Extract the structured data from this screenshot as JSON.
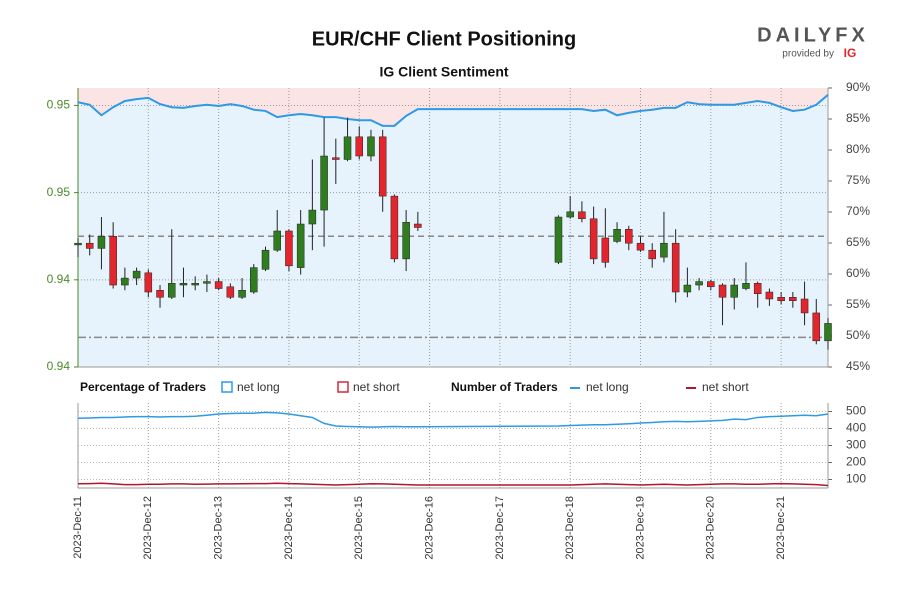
{
  "logo": {
    "name": "DAILYFX",
    "provided_by": "provided by",
    "brand": "IG"
  },
  "chart_data": [
    {
      "type": "candlestick",
      "title": "EUR/CHF Client Positioning",
      "subtitle": "IG Client Sentiment",
      "legend_title": "Percentage of Traders",
      "x": [
        0,
        1,
        2,
        3,
        4,
        5,
        6,
        7,
        8,
        9,
        10,
        11,
        12,
        13,
        14,
        15,
        16,
        17,
        18,
        19,
        20,
        21,
        22,
        23,
        24,
        25,
        26,
        27,
        28,
        29,
        41,
        42,
        43,
        44,
        45,
        46,
        47,
        48,
        49,
        50,
        51,
        52,
        53,
        54,
        55,
        56,
        57,
        58,
        59,
        60,
        61,
        62,
        63,
        64
      ],
      "xlim": [
        0,
        64
      ],
      "xticks": [
        {
          "value": 0,
          "label": "2023-Dec-11"
        },
        {
          "value": 6,
          "label": "2023-Dec-12"
        },
        {
          "value": 12,
          "label": "2023-Dec-13"
        },
        {
          "value": 18,
          "label": "2023-Dec-14"
        },
        {
          "value": 24,
          "label": "2023-Dec-15"
        },
        {
          "value": 30,
          "label": "2023-Dec-16"
        },
        {
          "value": 36,
          "label": "2023-Dec-17"
        },
        {
          "value": 42,
          "label": "2023-Dec-18"
        },
        {
          "value": 48,
          "label": "2023-Dec-19"
        },
        {
          "value": 54,
          "label": "2023-Dec-20"
        },
        {
          "value": 60,
          "label": "2023-Dec-21"
        }
      ],
      "open": [
        0.947,
        0.9471,
        0.9468,
        0.9475,
        0.9447,
        0.9451,
        0.9454,
        0.9444,
        0.944,
        0.9447,
        0.9447,
        0.9448,
        0.9449,
        0.9446,
        0.944,
        0.9443,
        0.9456,
        0.9467,
        0.9478,
        0.9457,
        0.9482,
        0.949,
        0.952,
        0.9519,
        0.9532,
        0.9521,
        0.9532,
        0.9498,
        0.9462,
        0.9482,
        0.946,
        0.9486,
        0.9489,
        0.9485,
        0.9474,
        0.9472,
        0.9479,
        0.9471,
        0.9467,
        0.9463,
        0.9471,
        0.9443,
        0.9447,
        0.9449,
        0.9447,
        0.944,
        0.9445,
        0.9448,
        0.9443,
        0.944,
        0.944,
        0.9439,
        0.9431,
        0.9415
      ],
      "high": [
        0.9474,
        0.9476,
        0.9486,
        0.9483,
        0.9457,
        0.9457,
        0.9456,
        0.9447,
        0.9479,
        0.9457,
        0.9452,
        0.9453,
        0.9451,
        0.9448,
        0.9451,
        0.9459,
        0.9469,
        0.949,
        0.9479,
        0.949,
        0.9519,
        0.9543,
        0.9531,
        0.9543,
        0.9538,
        0.9536,
        0.9536,
        0.9499,
        0.949,
        0.9489,
        0.9487,
        0.9498,
        0.9495,
        0.9492,
        0.9491,
        0.9483,
        0.9481,
        0.9475,
        0.9471,
        0.9489,
        0.9479,
        0.9457,
        0.9451,
        0.945,
        0.9448,
        0.9451,
        0.946,
        0.9449,
        0.9445,
        0.9443,
        0.9443,
        0.9449,
        0.9439,
        0.9428
      ],
      "low": [
        0.9463,
        0.9464,
        0.9456,
        0.9445,
        0.9444,
        0.9447,
        0.944,
        0.9434,
        0.9439,
        0.944,
        0.9444,
        0.9443,
        0.9444,
        0.9439,
        0.9439,
        0.9442,
        0.9455,
        0.9466,
        0.9455,
        0.9453,
        0.9467,
        0.9469,
        0.9505,
        0.9518,
        0.9519,
        0.9518,
        0.9489,
        0.946,
        0.9455,
        0.9478,
        0.9459,
        0.9485,
        0.9483,
        0.9459,
        0.9457,
        0.9471,
        0.9467,
        0.9466,
        0.9457,
        0.946,
        0.9437,
        0.944,
        0.9444,
        0.9444,
        0.9424,
        0.9433,
        0.9444,
        0.9434,
        0.9435,
        0.9436,
        0.9434,
        0.9424,
        0.9413,
        0.941
      ],
      "close": [
        0.9471,
        0.9468,
        0.9475,
        0.9447,
        0.9451,
        0.9455,
        0.9443,
        0.944,
        0.9448,
        0.9448,
        0.9448,
        0.9449,
        0.9445,
        0.944,
        0.9444,
        0.9457,
        0.9467,
        0.9478,
        0.9458,
        0.9482,
        0.949,
        0.9521,
        0.9519,
        0.9532,
        0.9521,
        0.9532,
        0.9498,
        0.9462,
        0.9483,
        0.948,
        0.9486,
        0.9489,
        0.9485,
        0.9462,
        0.946,
        0.9479,
        0.9471,
        0.9467,
        0.9462,
        0.9471,
        0.9443,
        0.9447,
        0.9449,
        0.9446,
        0.944,
        0.9447,
        0.9448,
        0.9442,
        0.9439,
        0.9438,
        0.9438,
        0.9431,
        0.9415,
        0.9425
      ],
      "up_color": "#2f7d1f",
      "down_color": "#e3262d",
      "ylim": [
        0.94,
        0.956
      ],
      "yticks": [
        {
          "value": 0.955,
          "label": "0.95"
        },
        {
          "value": 0.95,
          "label": "0.95"
        },
        {
          "value": 0.945,
          "label": "0.94"
        },
        {
          "value": 0.94,
          "label": "0.94"
        }
      ],
      "hlines": [
        0.9475,
        0.9417
      ],
      "y2lim": [
        45,
        90
      ],
      "y2ticks": [
        {
          "value": 45,
          "label": "45%"
        },
        {
          "value": 50,
          "label": "50%"
        },
        {
          "value": 55,
          "label": "55%"
        },
        {
          "value": 60,
          "label": "60%"
        },
        {
          "value": 65,
          "label": "65%"
        },
        {
          "value": 70,
          "label": "70%"
        },
        {
          "value": 75,
          "label": "75%"
        },
        {
          "value": 80,
          "label": "80%"
        },
        {
          "value": 85,
          "label": "85%"
        },
        {
          "value": 90,
          "label": "90%"
        }
      ],
      "grid": true,
      "series": [
        {
          "name": "net long",
          "axis": "y2",
          "color": "#2e9ae6",
          "fill": "#e6f2fc",
          "values": [
            87.7,
            87.3,
            85.6,
            86.9,
            87.9,
            88.2,
            88.4,
            87.4,
            86.9,
            86.8,
            87.1,
            87.3,
            87.1,
            87.4,
            87.1,
            86.5,
            86.3,
            85.3,
            85.6,
            85.8,
            85.6,
            85.3,
            85.3,
            85.0,
            84.8,
            84.8,
            83.9,
            83.9,
            85.5,
            86.6,
            86.6,
            86.6,
            86.6,
            86.3,
            86.5,
            85.6,
            86.0,
            86.3,
            86.5,
            86.8,
            86.8,
            87.7,
            87.4,
            87.3,
            87.3,
            87.3,
            87.6,
            87.9,
            87.6,
            86.9,
            86.3,
            86.5,
            87.3,
            88.9
          ]
        },
        {
          "name": "net short",
          "axis": "y2",
          "color": "#d42a3a",
          "fill": "#fbe4e4"
        }
      ]
    },
    {
      "type": "line",
      "legend_title": "Number of Traders",
      "x": [
        0,
        1,
        2,
        3,
        4,
        5,
        6,
        7,
        8,
        9,
        10,
        11,
        12,
        13,
        14,
        15,
        16,
        17,
        18,
        19,
        20,
        21,
        22,
        23,
        24,
        25,
        26,
        27,
        28,
        29,
        41,
        42,
        43,
        44,
        45,
        46,
        47,
        48,
        49,
        50,
        51,
        52,
        53,
        54,
        55,
        56,
        57,
        58,
        59,
        60,
        61,
        62,
        63,
        64
      ],
      "xlim": [
        0,
        64
      ],
      "ylim": [
        50,
        550
      ],
      "yticks": [
        100,
        200,
        300,
        400,
        500
      ],
      "grid": true,
      "series": [
        {
          "name": "net long",
          "color": "#2e9ae6",
          "values": [
            460,
            462,
            465,
            465,
            468,
            470,
            470,
            468,
            470,
            470,
            472,
            478,
            485,
            488,
            490,
            490,
            495,
            492,
            485,
            475,
            465,
            430,
            415,
            412,
            410,
            408,
            410,
            412,
            410,
            410,
            415,
            418,
            420,
            422,
            422,
            425,
            428,
            432,
            435,
            440,
            442,
            440,
            442,
            445,
            448,
            455,
            452,
            465,
            470,
            472,
            475,
            478,
            475,
            485
          ]
        },
        {
          "name": "net short",
          "color": "#b5142a",
          "values": [
            75,
            76,
            78,
            74,
            70,
            70,
            72,
            72,
            74,
            74,
            72,
            73,
            74,
            74,
            75,
            76,
            76,
            78,
            76,
            74,
            72,
            70,
            68,
            70,
            72,
            75,
            74,
            72,
            70,
            68,
            68,
            68,
            70,
            72,
            74,
            72,
            70,
            68,
            70,
            72,
            70,
            68,
            70,
            72,
            74,
            74,
            72,
            72,
            74,
            76,
            74,
            72,
            70,
            65
          ]
        }
      ]
    }
  ]
}
